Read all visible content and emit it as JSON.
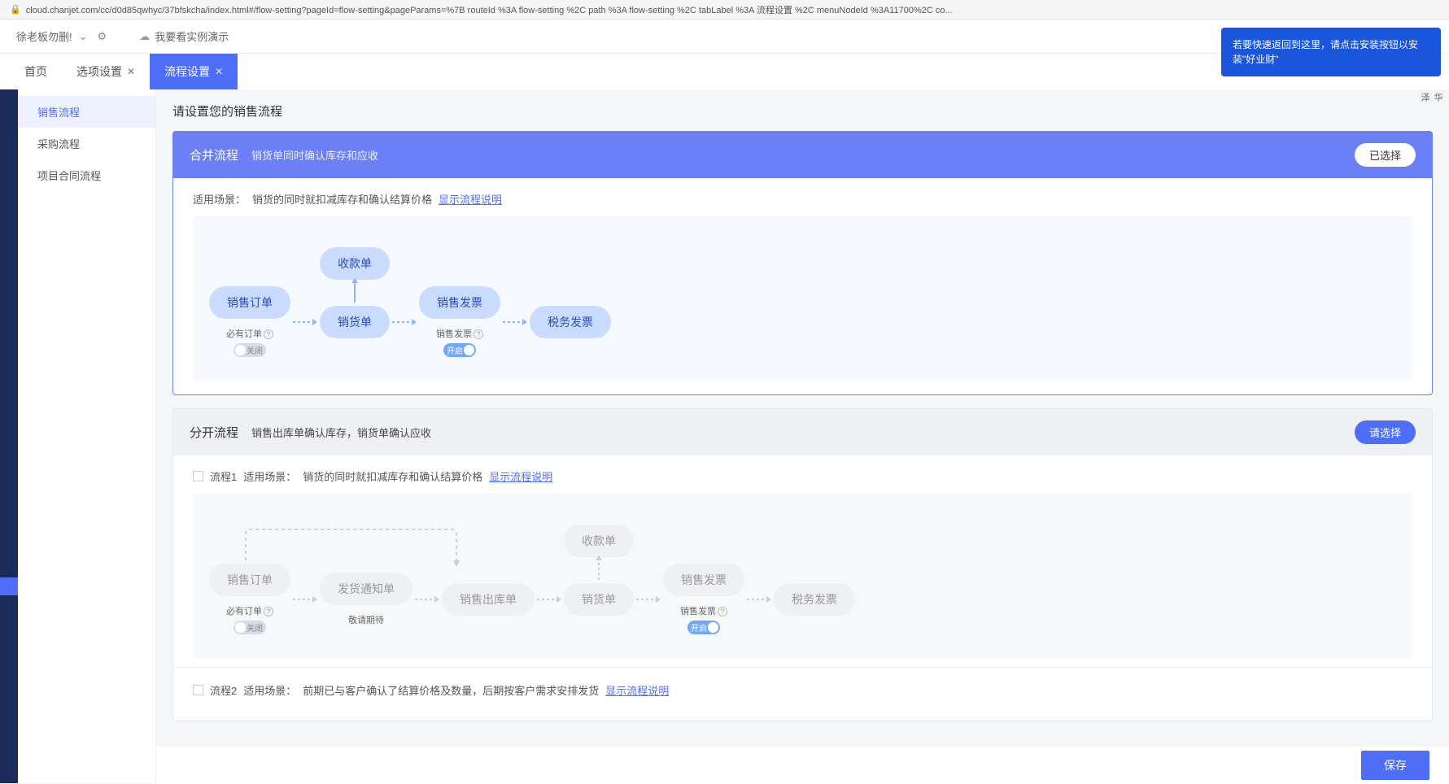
{
  "browser": {
    "url": "cloud.chanjet.com/cc/d0d85qwhyc/37bfskcha/index.html#/flow-setting?pageId=flow-setting&pageParams=%7B routeId %3A flow-setting %2C path %3A flow-setting %2C tabLabel %3A 流程设置 %2C menuNodeId %3A11700%2C co..."
  },
  "header": {
    "org": "徐老板勿删!",
    "demo": "我要看实例演示"
  },
  "notification": {
    "text": "若要快速返回到这里，请点击安装按钮以安装\"好业财\"",
    "right_text": "泽华"
  },
  "tabs": [
    {
      "label": "首页",
      "closable": false,
      "active": false
    },
    {
      "label": "选项设置",
      "closable": true,
      "active": false
    },
    {
      "label": "流程设置",
      "closable": true,
      "active": true
    }
  ],
  "sidebar": [
    {
      "label": "销售流程",
      "active": true
    },
    {
      "label": "采购流程",
      "active": false
    },
    {
      "label": "项目合同流程",
      "active": false
    }
  ],
  "page": {
    "title": "请设置您的销售流程"
  },
  "merge": {
    "title": "合并流程",
    "subtitle": "销货单同时确认库存和应收",
    "button": "已选择",
    "scene_prefix": "适用场景：",
    "scene": "销货的同时就扣减库存和确认结算价格",
    "link": "显示流程说明",
    "nodes": {
      "sales_order": "销售订单",
      "delivery": "销货单",
      "receipt": "收款单",
      "sales_invoice": "销售发票",
      "tax_invoice": "税务发票"
    },
    "under": {
      "order_label": "必有订单",
      "order_toggle": "关闭",
      "invoice_label": "销售发票",
      "invoice_toggle": "开启"
    }
  },
  "split": {
    "title": "分开流程",
    "subtitle": "销售出库单确认库存，销货单确认应收",
    "button": "请选择",
    "flow1": {
      "label": "流程1",
      "scene_prefix": "适用场景：",
      "scene": "销货的同时就扣减库存和确认结算价格",
      "link": "显示流程说明",
      "nodes": {
        "sales_order": "销售订单",
        "ship_notice": "发货通知单",
        "outbound": "销售出库单",
        "delivery": "销货单",
        "receipt": "收款单",
        "sales_invoice": "销售发票",
        "tax_invoice": "税务发票"
      },
      "under": {
        "order_label": "必有订单",
        "order_toggle": "关闭",
        "notice_label": "敬请期待",
        "invoice_label": "销售发票",
        "invoice_toggle": "开启"
      }
    },
    "flow2": {
      "label": "流程2",
      "scene_prefix": "适用场景：",
      "scene": "前期已与客户确认了结算价格及数量，后期按客户需求安排发货",
      "link": "显示流程说明"
    }
  },
  "footer": {
    "save": "保存"
  },
  "colors": {
    "primary": "#4f6ef7",
    "node_active_bg": "#c9dbff",
    "node_active_fg": "#2b4db0",
    "node_inactive_bg": "#eef0f3",
    "node_inactive_fg": "#999999",
    "flow_bg_active": "#f6f9ff",
    "flow_bg_inactive": "#f7f8f9"
  }
}
